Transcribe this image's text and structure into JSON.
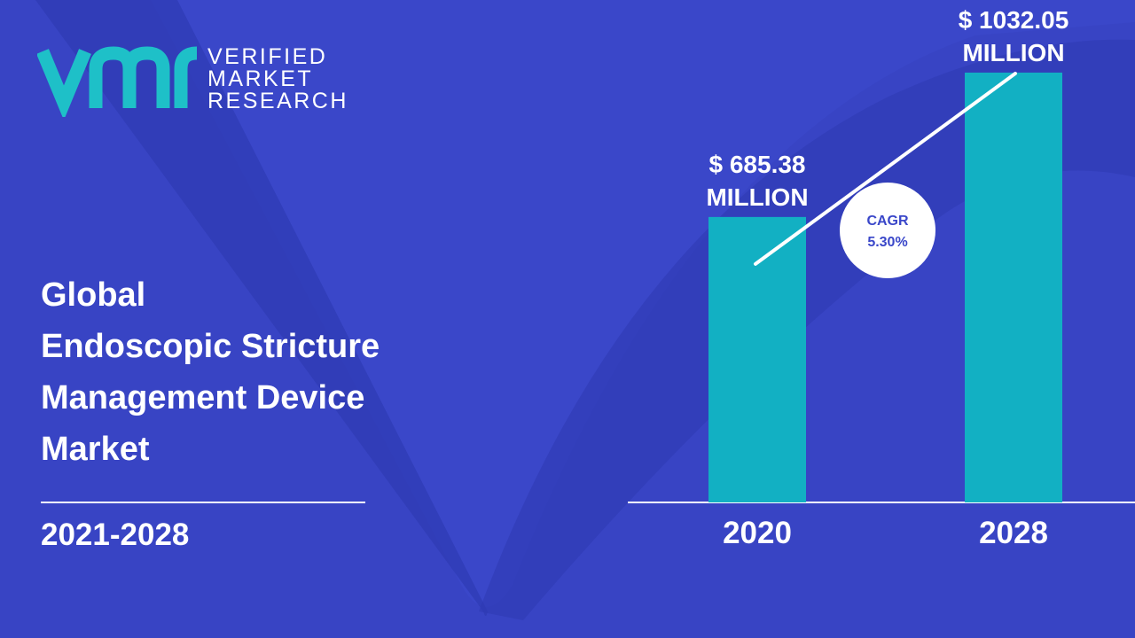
{
  "brand": {
    "lines": [
      "VERIFIED",
      "MARKET",
      "RESEARCH"
    ],
    "logo_name": "vmr-logo"
  },
  "title": {
    "lines": [
      "Global",
      "Endoscopic Stricture",
      "Management Device",
      "Market"
    ]
  },
  "period": "2021-2028",
  "colors": {
    "background": "#3a47c9",
    "background_shape": "#2f3bb4",
    "bar": "#12b0c3",
    "logo": "#1ec0c8",
    "text": "#ffffff",
    "cagr_text": "#3a47c9"
  },
  "chart_data": {
    "type": "bar",
    "categories": [
      "2020",
      "2028"
    ],
    "values": [
      685.38,
      1032.05
    ],
    "value_labels": [
      [
        "$ 685.38",
        "MILLION"
      ],
      [
        "$ 1032.05",
        "MILLION"
      ]
    ],
    "unit": "MILLION",
    "cagr": {
      "label": "CAGR",
      "value": "5.30%"
    },
    "trend_arrow": true,
    "ylim": [
      0,
      1100
    ],
    "grid": false,
    "legend": "none"
  }
}
